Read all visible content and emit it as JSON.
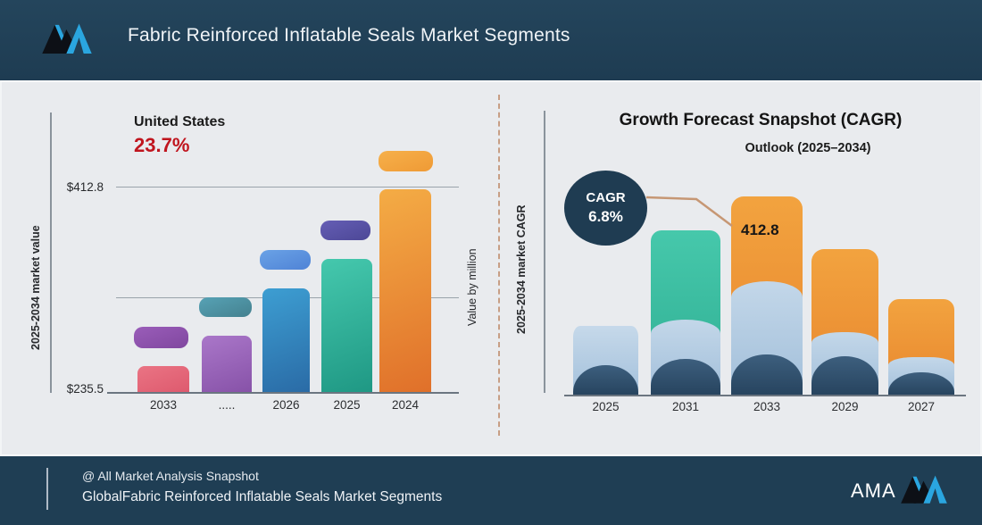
{
  "header": {
    "title": "Fabric Reinforced Inflatable Seals Market Segments",
    "logo": "ama-mountain-logo"
  },
  "footer": {
    "credit": "@ All Market Analysis Snapshot",
    "subtitle": "GlobalFabric Reinforced Inflatable Seals Market Segments",
    "brand": "AMA",
    "logo": "ama-mountain-logo"
  },
  "colors": {
    "header_bg": "#1f3e54",
    "panel_bg": "#e9ebee",
    "accent_red": "#c0151e",
    "badge_navy": "#1f3c52",
    "connector_tan": "#c69774",
    "divider_tan": "#c79e85",
    "orange": "#ef9b33",
    "teal": "#3cc0a4",
    "light_blue": "#bdd2e6",
    "dome_navy": "#31536f"
  },
  "chart_data": [
    {
      "id": "us-market-value",
      "type": "bar",
      "title": "United States",
      "highlight_value": "23.7%",
      "ylabel": "2025-2034 market value",
      "ylabel_secondary": "Value by million",
      "axis_ref_top": "$412.8",
      "axis_ref_bottom": "$235.5",
      "ylim": [
        235.5,
        412.8
      ],
      "categories": [
        "2033",
        ".....",
        "2026",
        "2025",
        "2024"
      ],
      "values_estimate": [
        258,
        284,
        325,
        350,
        411
      ],
      "grid": true,
      "axis": {
        "x": 54,
        "y1": 34,
        "y2": 348
      },
      "baseline": {
        "x1": 118,
        "x2": 512,
        "y": 347
      },
      "gridlines": [
        {
          "y": 117,
          "x1": 128,
          "x2": 512
        },
        {
          "y": 241,
          "x1": 128,
          "x2": 512
        }
      ],
      "label_y": 354,
      "bars": [
        {
          "x": 152,
          "w": 58,
          "top": 318,
          "c1": "#ea7484",
          "c2": "#de5a6e",
          "cap": {
            "x": 148,
            "w": 61,
            "top": 274,
            "h": 24,
            "c1": "#9a5db9",
            "c2": "#80479f"
          }
        },
        {
          "x": 224,
          "w": 56,
          "top": 284,
          "c1": "#aa77c9",
          "c2": "#8752a8",
          "cap": {
            "x": 221,
            "w": 59,
            "top": 241,
            "h": 22,
            "c1": "#57a2b5",
            "c2": "#44818f"
          }
        },
        {
          "x": 292,
          "w": 53,
          "top": 231,
          "c1": "#3d9ed2",
          "c2": "#2a6ba6",
          "cap": {
            "x": 289,
            "w": 57,
            "top": 188,
            "h": 22,
            "c1": "#6aa2e6",
            "c2": "#4f83d6"
          }
        },
        {
          "x": 358,
          "w": 57,
          "top": 198,
          "c1": "#45c8ad",
          "c2": "#1f9884",
          "cap": {
            "x": 357,
            "w": 56,
            "top": 155,
            "h": 22,
            "c1": "#655eb5",
            "c2": "#4c4796"
          }
        },
        {
          "x": 423,
          "w": 58,
          "top": 120,
          "c1": "#f4ac45",
          "c2": "#e0702a",
          "cap": {
            "x": 422,
            "w": 61,
            "top": 77,
            "h": 23,
            "c1": "#f6b04a",
            "c2": "#ef9a35"
          }
        }
      ]
    },
    {
      "id": "growth-forecast-cagr",
      "type": "stacked-bar",
      "title": "Growth Forecast Snapshot (CAGR)",
      "subtitle": "Outlook (2025–2034)",
      "badge": {
        "label": "CAGR",
        "value": "6.8%"
      },
      "ylabel": "2025-2034 market CAGR",
      "annotation": {
        "text": "412.8",
        "category": "2033"
      },
      "categories": [
        "2025",
        "2031",
        "2033",
        "2029",
        "2027"
      ],
      "grid": false,
      "axis": {
        "x": 607,
        "y1": 32,
        "y2": 348
      },
      "baseline": {
        "x1": 630,
        "x2": 1080,
        "y": 350
      },
      "label_y": 356,
      "connector_points": "722,129 778,131 818,161",
      "bars": [
        {
          "x": 640,
          "w": 73,
          "segments": [
            {
              "top": 273,
              "c1": "#c6d9ea",
              "c2": "#a3c0db",
              "r": "8px 8px 0 0 / 12px 12px 0 0"
            },
            {
              "top": 317,
              "c1": "#3d5f7e",
              "c2": "#27445f",
              "r": "36px 36px 0 0 / 30px 30px 0 0"
            }
          ]
        },
        {
          "x": 727,
          "w": 78,
          "segments": [
            {
              "top": 166,
              "c1": "#46c8ab",
              "c2": "#2fae93",
              "r": "12px 12px 0 0"
            },
            {
              "top": 266,
              "c1": "#c3d7e9",
              "c2": "#a2bfda",
              "r": "40px 40px 0 0 / 16px 16px 0 0"
            },
            {
              "top": 310,
              "c1": "#3d5f7e",
              "c2": "#27445f",
              "r": "38px 38px 0 0 / 30px 30px 0 0"
            }
          ]
        },
        {
          "x": 817,
          "w": 80,
          "segments": [
            {
              "top": 128,
              "c1": "#f2a33f",
              "c2": "#e8862e",
              "r": "14px 14px 0 0"
            },
            {
              "top": 223,
              "c1": "#c3d7e9",
              "c2": "#a2bfda",
              "r": "40px 40px 0 0 / 18px 18px 0 0"
            },
            {
              "top": 305,
              "c1": "#3d5f7e",
              "c2": "#27445f",
              "r": "39px 39px 0 0 / 32px 32px 0 0"
            }
          ]
        },
        {
          "x": 907,
          "w": 75,
          "segments": [
            {
              "top": 187,
              "c1": "#f2a33f",
              "c2": "#e8862e",
              "r": "14px 14px 0 0"
            },
            {
              "top": 280,
              "c1": "#c3d7e9",
              "c2": "#a2bfda",
              "r": "34px 34px 0 0 / 12px 12px 0 0"
            },
            {
              "top": 307,
              "c1": "#3d5f7e",
              "c2": "#27445f",
              "r": "37px 37px 0 0 / 30px 30px 0 0"
            }
          ]
        },
        {
          "x": 993,
          "w": 74,
          "segments": [
            {
              "top": 243,
              "c1": "#f2a33f",
              "c2": "#e8862e",
              "r": "12px 12px 0 0"
            },
            {
              "top": 308,
              "c1": "#c3d7e9",
              "c2": "#a2bfda",
              "r": "28px 28px 0 0 / 9px 9px 0 0"
            },
            {
              "top": 325,
              "c1": "#3d5f7e",
              "c2": "#27445f",
              "r": "36px 36px 0 0 / 22px 22px 0 0"
            }
          ]
        }
      ]
    }
  ]
}
